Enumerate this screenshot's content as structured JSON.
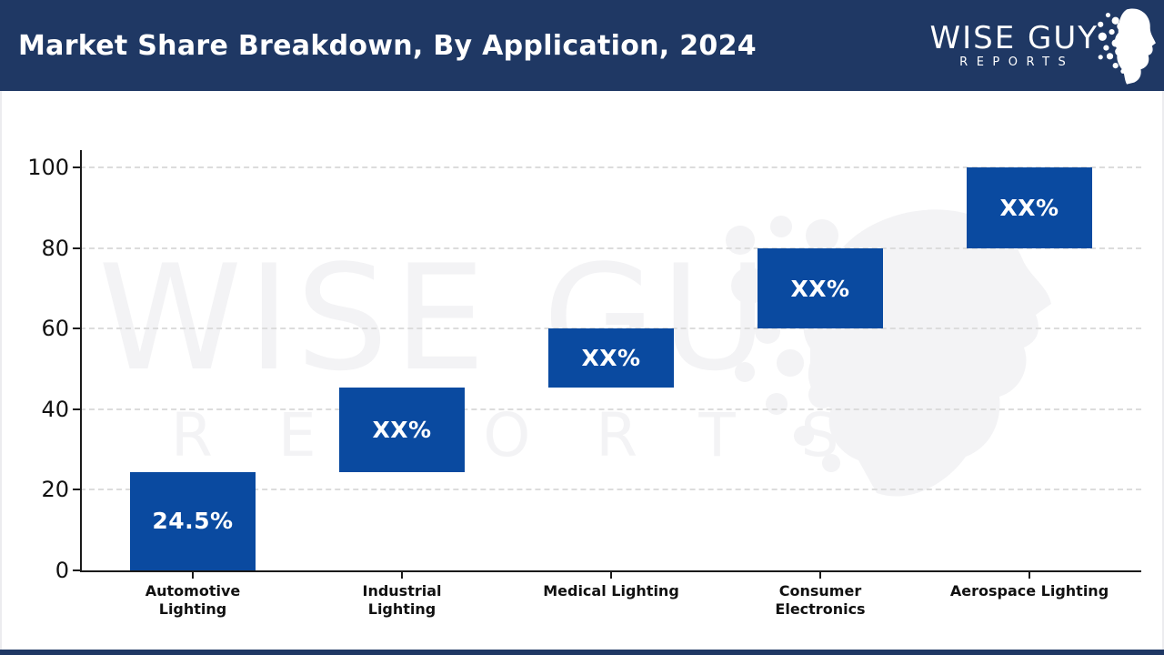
{
  "header": {
    "title": "Market Share Breakdown, By Application, 2024",
    "logo": {
      "line1": "WISE GUY",
      "line2": "REPORTS"
    }
  },
  "watermark": {
    "line1": "WISE GUY",
    "line2": "REPORTS"
  },
  "colors": {
    "header_bg": "#1f3864",
    "footer_bg": "#1f3864",
    "bar": "#0a4aa0",
    "bar_label": "#ffffff",
    "watermark": "#f3f3f5",
    "grid": "#dcdcdc",
    "axis": "#1a1a1a",
    "tick_text": "#111111"
  },
  "chart_data": {
    "type": "bar",
    "variant": "waterfall",
    "title": "Market Share Breakdown, By Application, 2024",
    "categories": [
      "Automotive\nLighting",
      "Industrial\nLighting",
      "Medical Lighting",
      "Consumer\nElectronics",
      "Aerospace Lighting"
    ],
    "segments": [
      {
        "category": "Automotive Lighting",
        "start": 0,
        "end": 24.5,
        "label": "24.5%"
      },
      {
        "category": "Industrial Lighting",
        "start": 24.5,
        "end": 45.5,
        "label": "XX%"
      },
      {
        "category": "Medical Lighting",
        "start": 45.5,
        "end": 60,
        "label": "XX%"
      },
      {
        "category": "Consumer Electronics",
        "start": 60,
        "end": 80,
        "label": "XX%"
      },
      {
        "category": "Aerospace Lighting",
        "start": 80,
        "end": 100,
        "label": "XX%"
      }
    ],
    "yticks": [
      0,
      20,
      40,
      60,
      80,
      100
    ],
    "ylim": [
      0,
      104
    ],
    "xlabel": "",
    "ylabel": "",
    "grid": {
      "horizontal": true,
      "style": "dashed"
    },
    "legend": "none"
  }
}
